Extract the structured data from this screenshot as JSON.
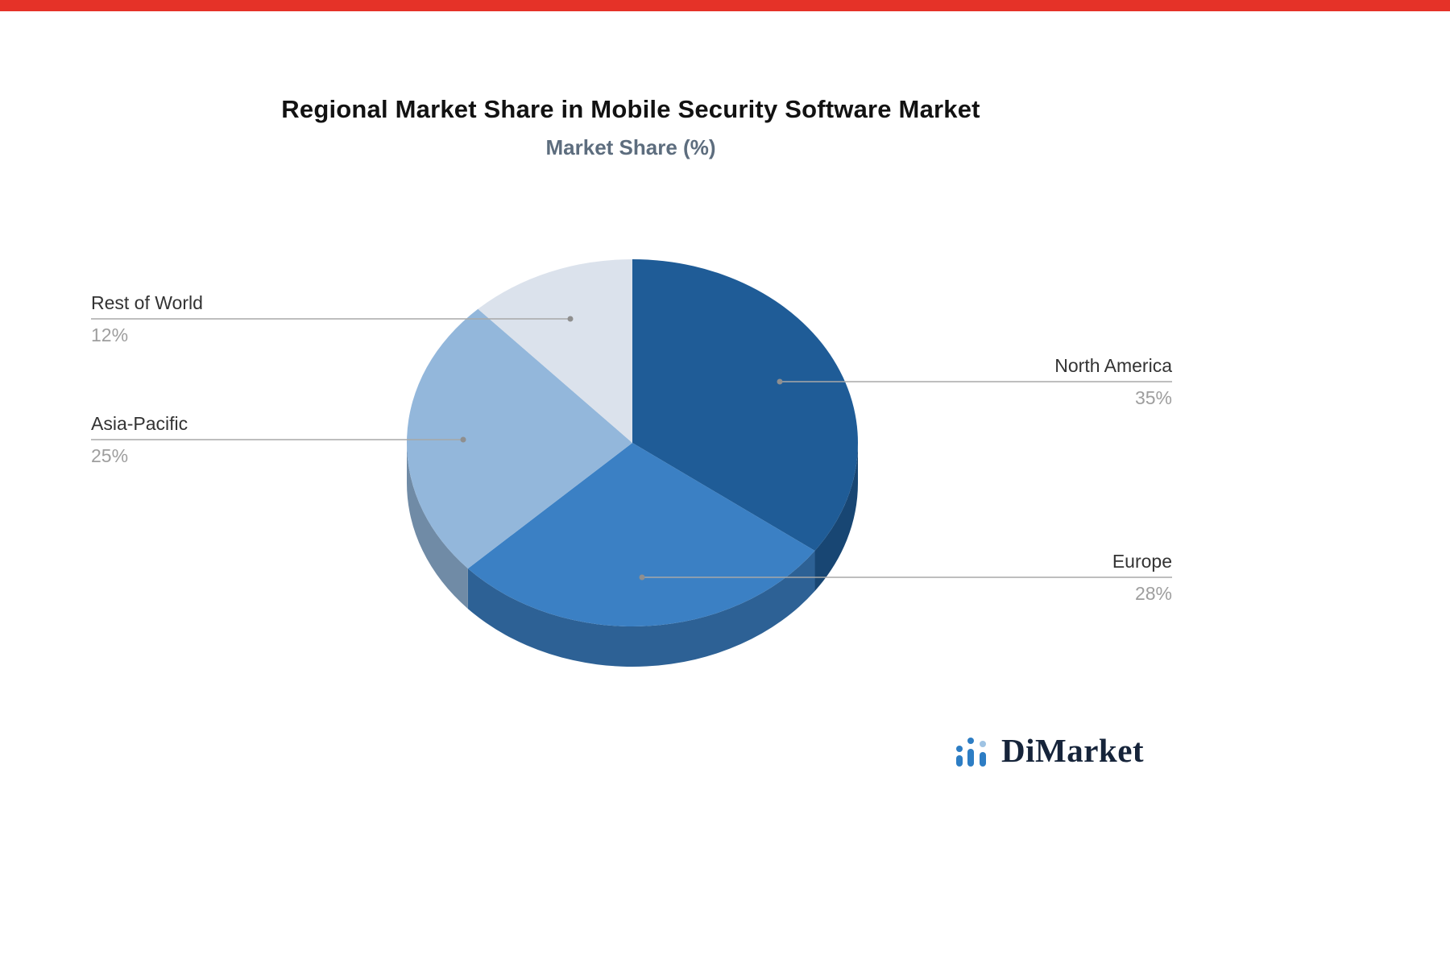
{
  "page": {
    "accent_bar_color": "#e53228",
    "background_color": "#ffffff"
  },
  "header": {
    "title": "Regional Market Share in Mobile Security Software Market",
    "subtitle": "Market Share (%)"
  },
  "chart_data": {
    "type": "pie",
    "style": "3d-pie",
    "title": "Regional Market Share in Mobile Security Software Market",
    "subtitle": "Market Share (%)",
    "unit": "%",
    "start_angle_deg": 0,
    "direction": "clockwise",
    "legend_position": "callout-labels",
    "slices": [
      {
        "label": "North America",
        "value": 35,
        "value_text": "35%",
        "color": "#1f5c97"
      },
      {
        "label": "Europe",
        "value": 28,
        "value_text": "28%",
        "color": "#3b80c4"
      },
      {
        "label": "Asia-Pacific",
        "value": 25,
        "value_text": "25%",
        "color": "#93b7db"
      },
      {
        "label": "Rest of World",
        "value": 12,
        "value_text": "12%",
        "color": "#dbe2ec"
      }
    ]
  },
  "logo": {
    "text": "DiMarket"
  }
}
